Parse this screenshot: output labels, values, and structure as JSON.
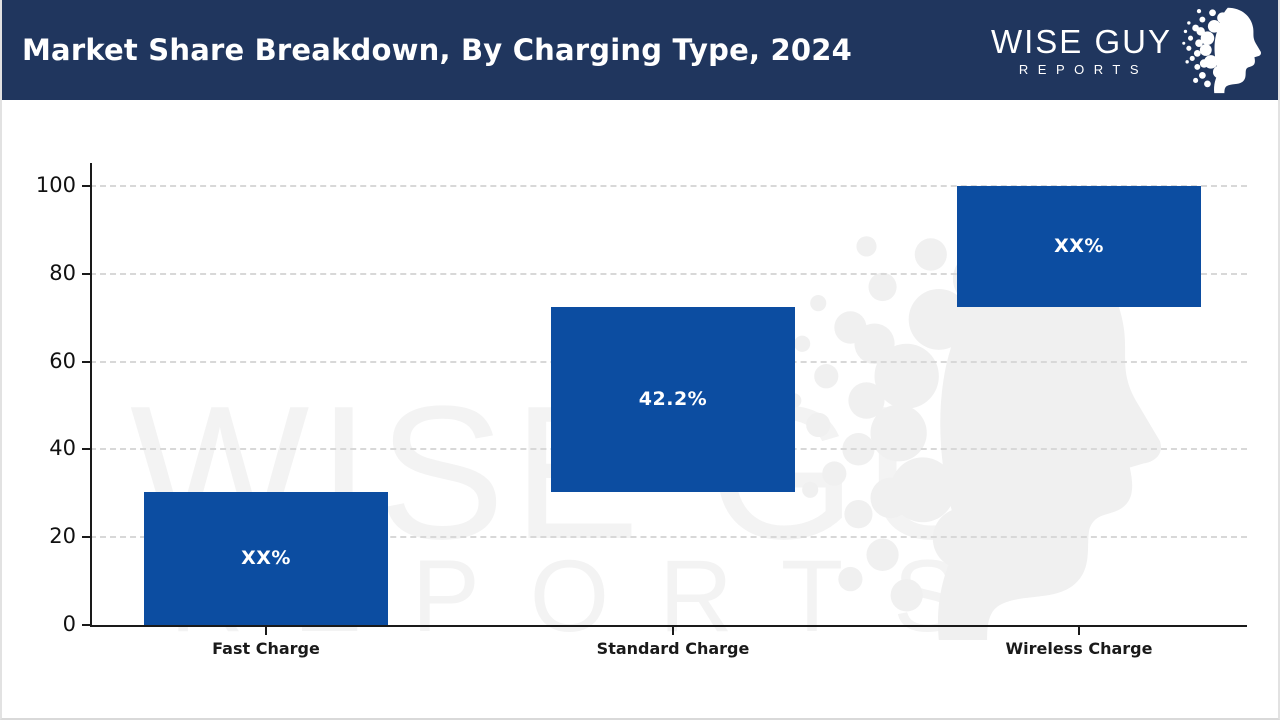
{
  "header": {
    "title": "Market Share Breakdown, By Charging Type, 2024",
    "logo": {
      "line1": "WISE GUY",
      "line2": "REPORTS"
    }
  },
  "watermark": {
    "line1": "WISE GUY",
    "line2": "REPORTS"
  },
  "chart_data": {
    "type": "bar",
    "subtype": "waterfall",
    "title": "Market Share Breakdown, By Charging Type, 2024",
    "categories": [
      "Fast Charge",
      "Standard Charge",
      "Wireless Charge"
    ],
    "segments": [
      {
        "category": "Fast Charge",
        "base": 0,
        "value": 30.3,
        "label": "XX%"
      },
      {
        "category": "Standard Charge",
        "base": 30.3,
        "value": 42.2,
        "label": "42.2%"
      },
      {
        "category": "Wireless Charge",
        "base": 72.5,
        "value": 27.5,
        "label": "XX%"
      }
    ],
    "xlabel": "",
    "ylabel": "",
    "ylim": [
      0,
      100
    ],
    "yticks": [
      0,
      20,
      40,
      60,
      80,
      100
    ],
    "grid": "horizontal-dashed",
    "legend": "none",
    "bar_color": "#0c4da1",
    "bar_label_color": "#ffffff"
  },
  "colors": {
    "header_bg": "#20365e",
    "bar": "#0c4da1",
    "gridline": "#d8d8d8",
    "axis": "#1a1a1a",
    "watermark": "#f3f3f3"
  }
}
